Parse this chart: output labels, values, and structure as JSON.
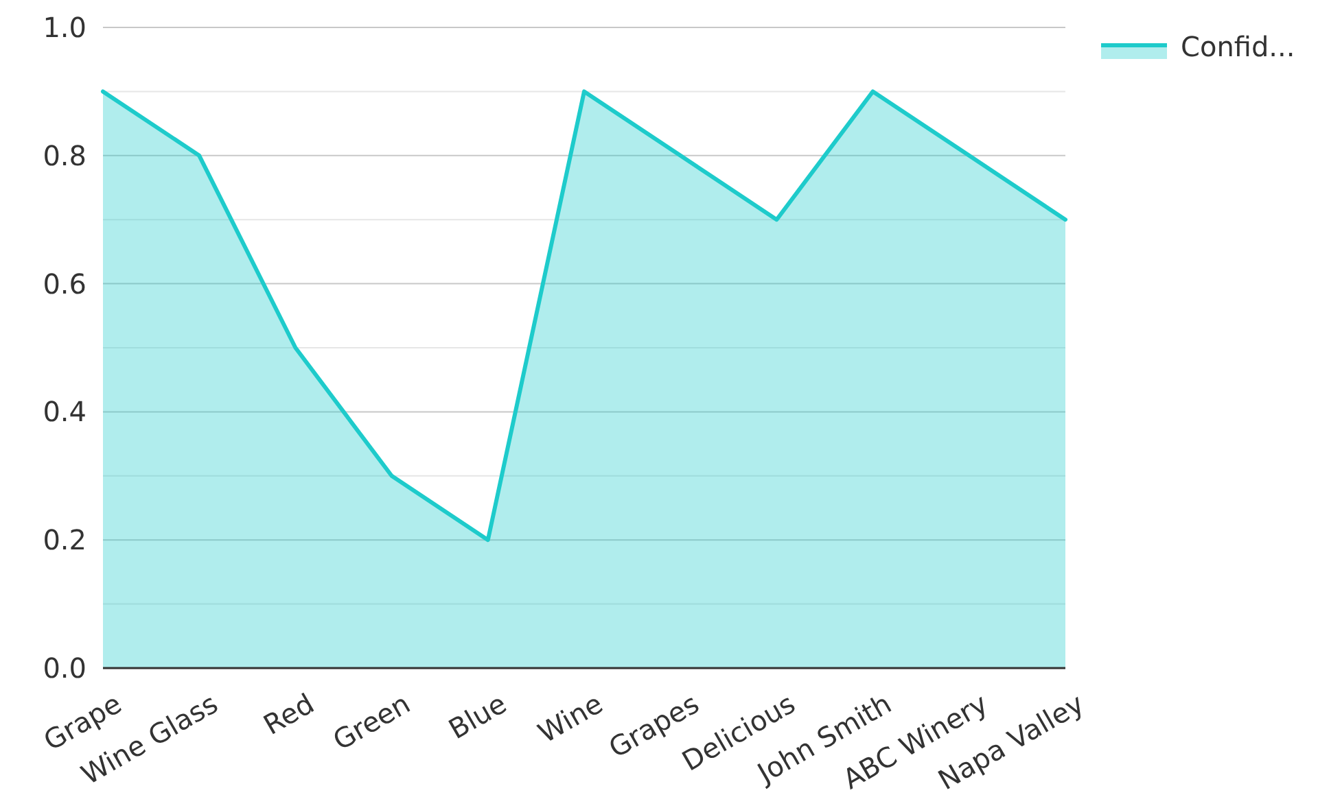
{
  "chart_data": {
    "type": "area",
    "categories": [
      "Grape",
      "Wine Glass",
      "Red",
      "Green",
      "Blue",
      "Wine",
      "Grapes",
      "Delicious",
      "John Smith",
      "ABC Winery",
      "Napa Valley"
    ],
    "series": [
      {
        "name": "Confid...",
        "color": "#1ecbcb",
        "values": [
          0.9,
          0.8,
          0.5,
          0.3,
          0.2,
          0.9,
          0.8,
          0.7,
          0.9,
          0.8,
          0.7
        ]
      }
    ],
    "ylim": [
      0,
      1
    ],
    "yticks": [
      {
        "value": 0,
        "label": "0.0"
      },
      {
        "value": 0.1,
        "label": null
      },
      {
        "value": 0.2,
        "label": "0.2"
      },
      {
        "value": 0.3,
        "label": null
      },
      {
        "value": 0.4,
        "label": "0.4"
      },
      {
        "value": 0.5,
        "label": null
      },
      {
        "value": 0.6,
        "label": "0.6"
      },
      {
        "value": 0.7,
        "label": null
      },
      {
        "value": 0.8,
        "label": "0.8"
      },
      {
        "value": 0.9,
        "label": null
      },
      {
        "value": 1,
        "label": "1.0"
      }
    ],
    "grid": "y",
    "legend": "top right"
  }
}
